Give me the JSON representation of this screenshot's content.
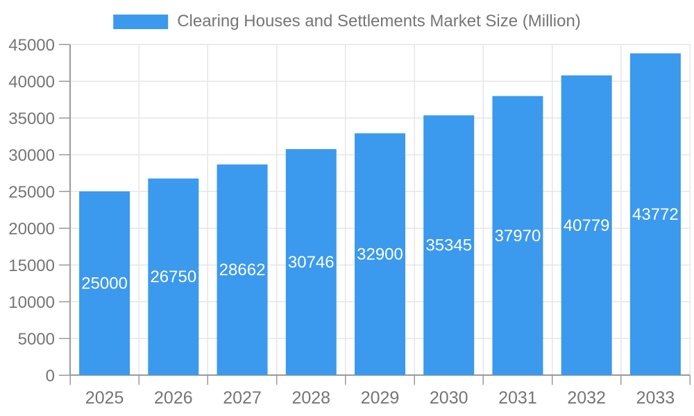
{
  "chart_data": {
    "type": "bar",
    "title": "Clearing Houses and Settlements Market Size (Million)",
    "categories": [
      "2025",
      "2026",
      "2027",
      "2028",
      "2029",
      "2030",
      "2031",
      "2032",
      "2033"
    ],
    "values": [
      25000,
      26750,
      28662,
      30746,
      32900,
      35345,
      37970,
      40779,
      43772
    ],
    "xlabel": "",
    "ylabel": "",
    "ylim": [
      0,
      45000
    ],
    "yticks": [
      0,
      5000,
      10000,
      15000,
      20000,
      25000,
      30000,
      35000,
      40000,
      45000
    ],
    "grid": true,
    "legend_position": "top-center",
    "colors": {
      "bar": "#3B99EE",
      "bar_label_text": "#ffffff",
      "axis_text": "#757575",
      "axis_line": "#999999",
      "tick_line": "#999999",
      "gridline": "#e6e6e6",
      "background": "#ffffff"
    }
  }
}
